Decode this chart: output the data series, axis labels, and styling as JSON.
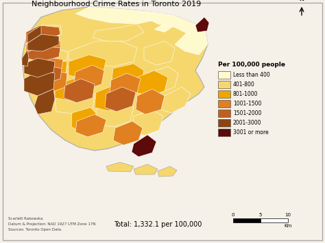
{
  "title": "Neighbourhood Crime Rates in Toronto 2019",
  "legend_title": "Per 100,000 people",
  "legend_labels": [
    "Less than 400",
    "401-800",
    "801-1000",
    "1001-1500",
    "1501-2000",
    "2001-3000",
    "3001 or more"
  ],
  "legend_colors": [
    "#FFFACD",
    "#F5D76E",
    "#F0A500",
    "#E08020",
    "#C06020",
    "#8B4513",
    "#5C0A0A"
  ],
  "total_text": "Total: 1,332.1 per 100,000",
  "credit_lines": [
    "Scarlett Rakowska",
    "Datum & Projection: NAD 1927 UTM Zone 17N",
    "Sources: Toronto Open Data"
  ],
  "bg_color": "#F5F0E8",
  "border_color": "#AAAAAA"
}
